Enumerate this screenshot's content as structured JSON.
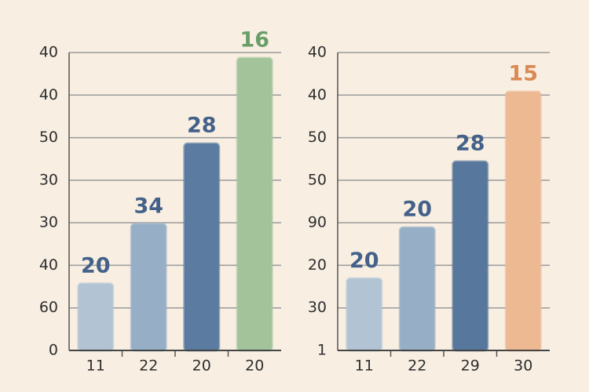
{
  "chart_data": [
    {
      "type": "bar",
      "categories": [
        "11",
        "22",
        "20",
        "20"
      ],
      "values": [
        1.57,
        2.97,
        4.86,
        6.87
      ],
      "bar_labels": [
        "20",
        "34",
        "28",
        "16"
      ],
      "colors": [
        "#b8cadb",
        "#9bb3cc",
        "#5e7fa5",
        "#a8c99f"
      ],
      "label_colors": [
        "#44618a",
        "#44618a",
        "#44618a",
        "#6a9e68"
      ],
      "ylim": [
        0,
        7
      ],
      "yticks": [
        {
          "value": 0,
          "label": "0"
        },
        {
          "value": 1,
          "label": "60"
        },
        {
          "value": 2,
          "label": "40"
        },
        {
          "value": 3,
          "label": "30"
        },
        {
          "value": 4,
          "label": "30"
        },
        {
          "value": 5,
          "label": "50"
        },
        {
          "value": 6,
          "label": "40"
        },
        {
          "value": 7,
          "label": "40"
        }
      ],
      "grid": true
    },
    {
      "type": "bar",
      "categories": [
        "11",
        "22",
        "29",
        "30"
      ],
      "values": [
        1.69,
        2.89,
        4.44,
        6.08
      ],
      "bar_labels": [
        "20",
        "20",
        "28",
        "15"
      ],
      "colors": [
        "#b8cadb",
        "#9bb3cc",
        "#5a7ba2",
        "#f3bf97"
      ],
      "label_colors": [
        "#44618a",
        "#44618a",
        "#44618a",
        "#d98a55"
      ],
      "ylim": [
        0,
        7
      ],
      "yticks": [
        {
          "value": 0,
          "label": "1"
        },
        {
          "value": 1,
          "label": "30"
        },
        {
          "value": 2,
          "label": "20"
        },
        {
          "value": 3,
          "label": "90"
        },
        {
          "value": 4,
          "label": "50"
        },
        {
          "value": 5,
          "label": "50"
        },
        {
          "value": 6,
          "label": "40"
        },
        {
          "value": 7,
          "label": "40"
        }
      ],
      "grid": true
    }
  ]
}
